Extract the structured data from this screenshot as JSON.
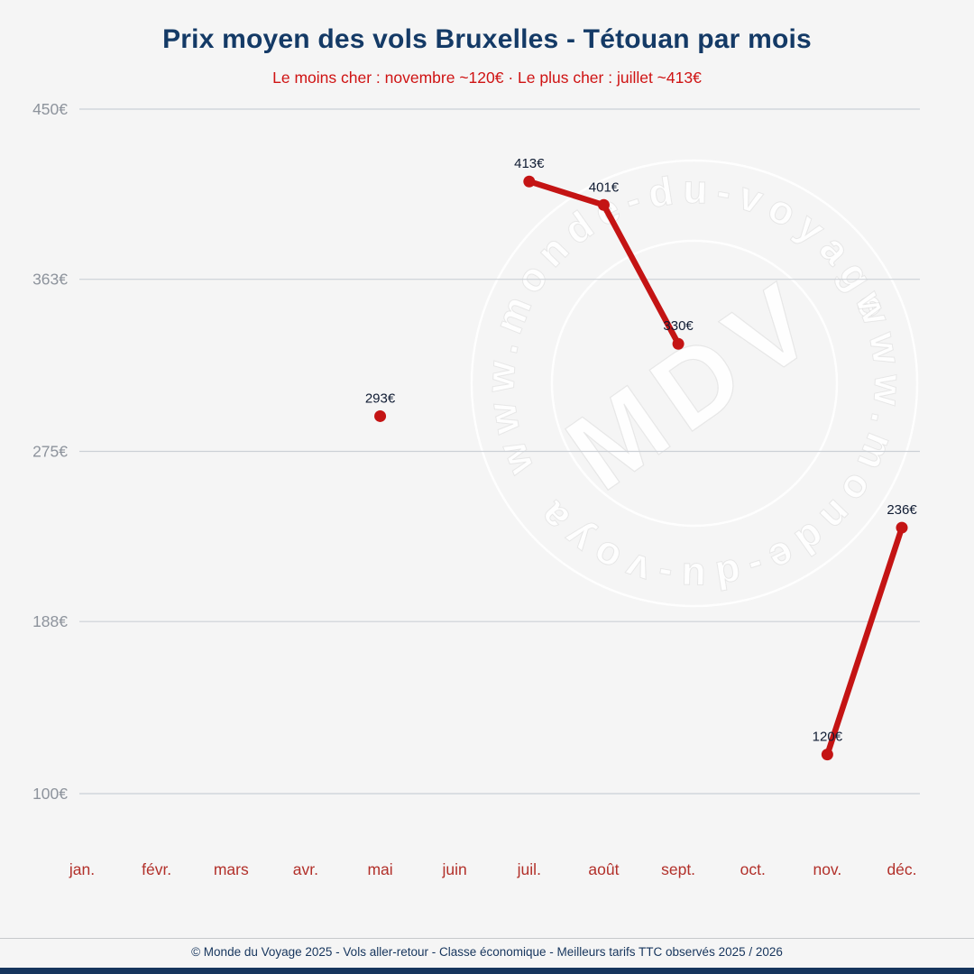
{
  "header": {
    "title": "Prix moyen des vols Bruxelles - Tétouan par mois",
    "subtitle": "Le moins cher : novembre ~120€ · Le plus cher : juillet ~413€"
  },
  "chart_data": {
    "type": "line",
    "title": "Prix moyen des vols Bruxelles - Tétouan par mois",
    "categories": [
      "jan.",
      "févr.",
      "mars",
      "avr.",
      "mai",
      "juin",
      "juil.",
      "août",
      "sept.",
      "oct.",
      "nov.",
      "déc."
    ],
    "values": [
      null,
      null,
      null,
      null,
      293,
      null,
      413,
      401,
      330,
      null,
      120,
      236
    ],
    "unit": "€",
    "xlabel": "",
    "ylabel": "",
    "ylim": [
      100,
      450
    ],
    "y_ticks": [
      450,
      363,
      275,
      188,
      100
    ],
    "grid": true,
    "legend": "none",
    "annotations": [
      "293€",
      "413€",
      "401€",
      "330€",
      "120€",
      "236€"
    ],
    "line_color": "#c41414",
    "point_color": "#c41414",
    "value_label_color": "#101c33",
    "axis_tick_color": "#8d939c",
    "month_label_color": "#b2302a",
    "gridline_color": "#cbd0d6"
  },
  "watermark": {
    "ring_text": "www.monde-du-voyage",
    "center_text": "MDV"
  },
  "footer": {
    "text": "© Monde du Voyage 2025 - Vols aller-retour - Classe économique - Meilleurs tarifs TTC observés 2025 / 2026"
  }
}
